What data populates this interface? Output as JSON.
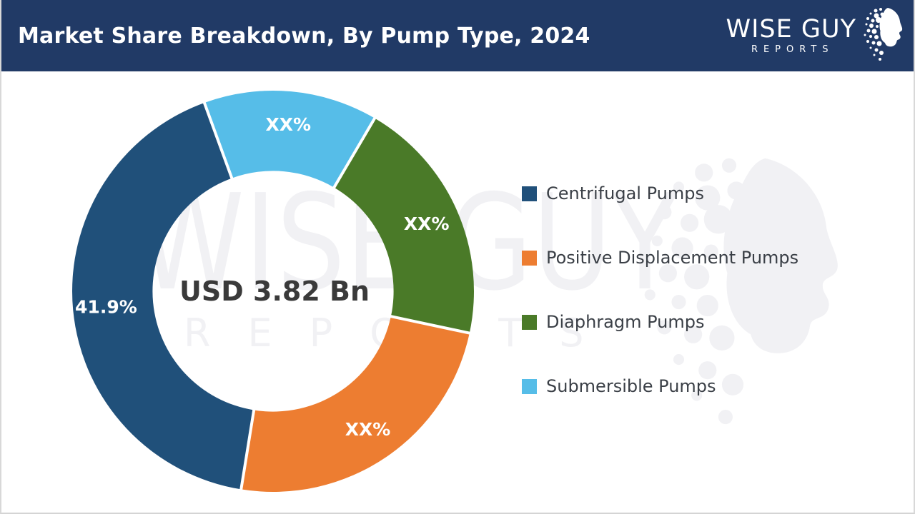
{
  "header": {
    "title": "Market Share Breakdown, By Pump Type, 2024",
    "brand": {
      "name": "WISE GUY",
      "tagline": "REPORTS"
    }
  },
  "watermark": {
    "line1": "WISE GUY",
    "line2": "REPORTS"
  },
  "chart_data": {
    "type": "pie",
    "subtype": "donut",
    "title": "Market Share Breakdown, By Pump Type, 2024",
    "center_label": "USD 3.82 Bn",
    "start_angle_deg": 110,
    "direction": "counterclockwise",
    "inner_radius_ratio": 0.6,
    "slice_label_radius_ratio": 0.835,
    "legend_position": "right",
    "segments": [
      {
        "label": "Centrifugal Pumps",
        "value": 41.9,
        "slice_label": "41.9%",
        "color": "#20507A"
      },
      {
        "label": "Positive Displacement Pumps",
        "value": 24.2,
        "slice_label": "XX%",
        "color": "#ED7D31"
      },
      {
        "label": "Diaphragm Pumps",
        "value": 19.9,
        "slice_label": "XX%",
        "color": "#4A7A28"
      },
      {
        "label": "Submersible Pumps",
        "value": 14.0,
        "slice_label": "XX%",
        "color": "#56BDE8"
      }
    ]
  }
}
